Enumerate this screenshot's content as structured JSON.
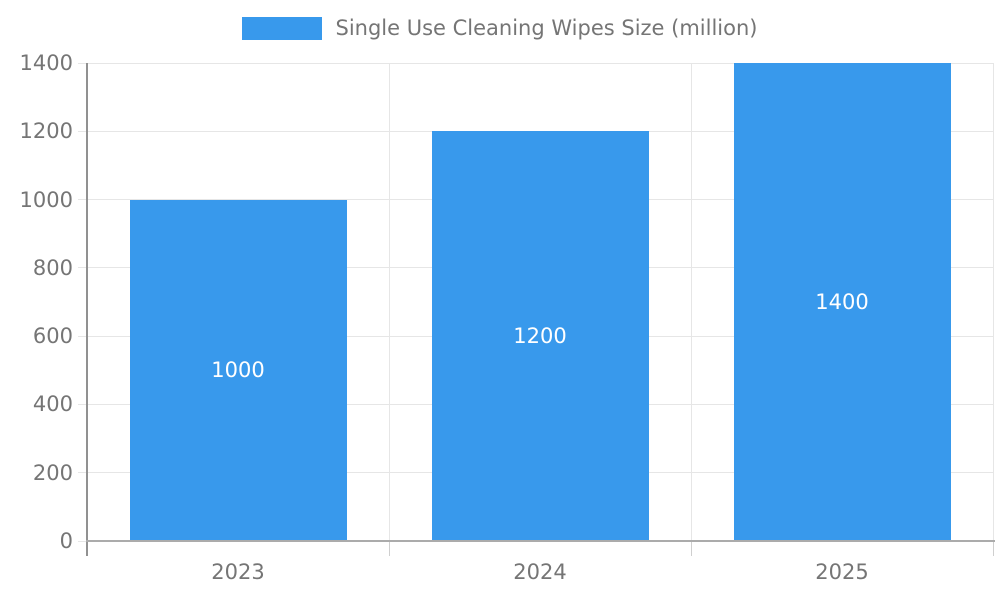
{
  "chart_data": {
    "type": "bar",
    "title": "",
    "legend_entries": [
      "Single Use Cleaning Wipes Size (million)"
    ],
    "legend_position": "top",
    "categories": [
      "2023",
      "2024",
      "2025"
    ],
    "series": [
      {
        "name": "Single Use Cleaning Wipes Size (million)",
        "values": [
          1000,
          1200,
          1400
        ]
      }
    ],
    "values": [
      1000,
      1200,
      1400
    ],
    "bar_value_labels": [
      "1000",
      "1200",
      "1400"
    ],
    "xlabel": "",
    "ylabel": "",
    "ylim": [
      0,
      1400
    ],
    "yticks": [
      0,
      200,
      400,
      600,
      800,
      1000,
      1200,
      1400
    ],
    "grid": true
  },
  "legend": {
    "label": "Single Use Cleaning Wipes Size (million)"
  },
  "colors": {
    "bar": "#3899ec",
    "grid": "#e6e6e6",
    "tick": "#cfcfcf",
    "axis_y": "#919191",
    "axis_x": "#ababab",
    "text": "#757575",
    "bar_label": "#ffffff",
    "background": "#ffffff"
  }
}
